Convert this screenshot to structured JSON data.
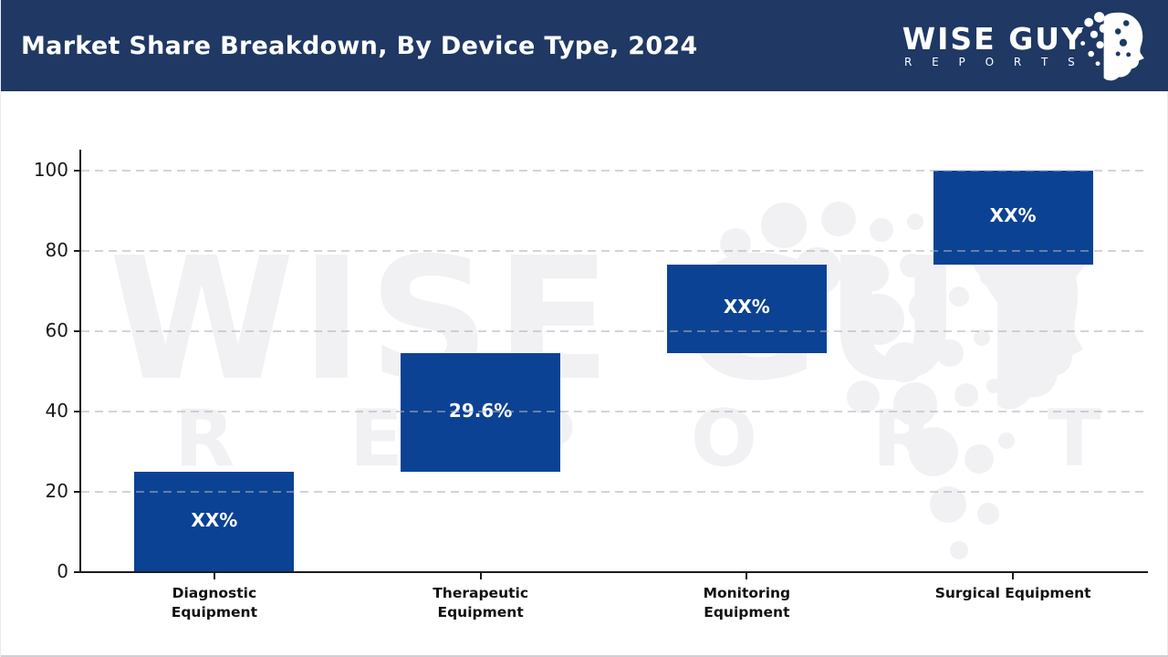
{
  "header": {
    "title": "Market Share Breakdown, By Device Type, 2024",
    "bg_color": "#1f3864",
    "logo": {
      "line1": "WISE GUY",
      "line2": "R E P O R T S"
    }
  },
  "watermark": {
    "line1": "WISE GUY",
    "line2": "R E P O R T S"
  },
  "chart_data": {
    "type": "bar",
    "subtype": "floating-waterfall",
    "title": "Market Share Breakdown, By Device Type, 2024",
    "categories": [
      "Diagnostic Equipment",
      "Therapeutic Equipment",
      "Monitoring Equipment",
      "Surgical Equipment"
    ],
    "category_lines": [
      [
        "Diagnostic",
        "Equipment"
      ],
      [
        "Therapeutic",
        "Equipment"
      ],
      [
        "Monitoring",
        "Equipment"
      ],
      [
        "Surgical Equipment"
      ]
    ],
    "series": [
      {
        "name": "Market share (%)",
        "segments": [
          {
            "category": "Diagnostic Equipment",
            "start": 0,
            "end": 25,
            "label": "XX%"
          },
          {
            "category": "Therapeutic Equipment",
            "start": 25,
            "end": 54.6,
            "label": "29.6%"
          },
          {
            "category": "Monitoring Equipment",
            "start": 54.6,
            "end": 76.6,
            "label": "XX%"
          },
          {
            "category": "Surgical Equipment",
            "start": 76.6,
            "end": 100,
            "label": "XX%"
          }
        ]
      }
    ],
    "ylim": [
      0,
      100
    ],
    "yticks": [
      0,
      20,
      40,
      60,
      80,
      100
    ],
    "xlabel": "",
    "ylabel": "",
    "grid": "horizontal dashed",
    "legend": "none",
    "bar_color": "#0b4294",
    "bar_label_color": "#ffffff"
  },
  "colors": {
    "header_bg": "#1f3864",
    "bar": "#0b4294",
    "axis": "#1c1c1c",
    "grid": "#d9d9dc",
    "watermark": "#f1f1f4"
  }
}
